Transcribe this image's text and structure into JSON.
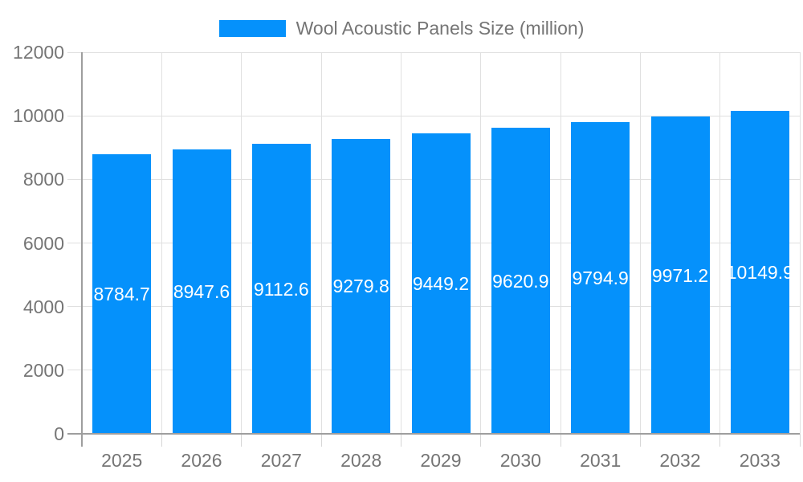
{
  "chart_data": {
    "type": "bar",
    "title": "Wool Acoustic Panels Size (million)",
    "categories": [
      "2025",
      "2026",
      "2027",
      "2028",
      "2029",
      "2030",
      "2031",
      "2032",
      "2033"
    ],
    "values": [
      8784.7,
      8947.6,
      9112.6,
      9279.8,
      9449.2,
      9620.9,
      9794.9,
      9971.2,
      10149.9
    ],
    "xlabel": "",
    "ylabel": "",
    "ylim": [
      0,
      12000
    ],
    "yticks": [
      0,
      2000,
      4000,
      6000,
      8000,
      10000,
      12000
    ],
    "grid": true,
    "legend_position": "top",
    "value_labels": "inside-center",
    "colors": {
      "bar": "#0591fb",
      "value_text": "#ffffff",
      "axis": "#9e9e9e",
      "grid": "#e0e0e0",
      "tick": "#d6d6d6",
      "text": "#757575",
      "background": "#ffffff"
    }
  }
}
